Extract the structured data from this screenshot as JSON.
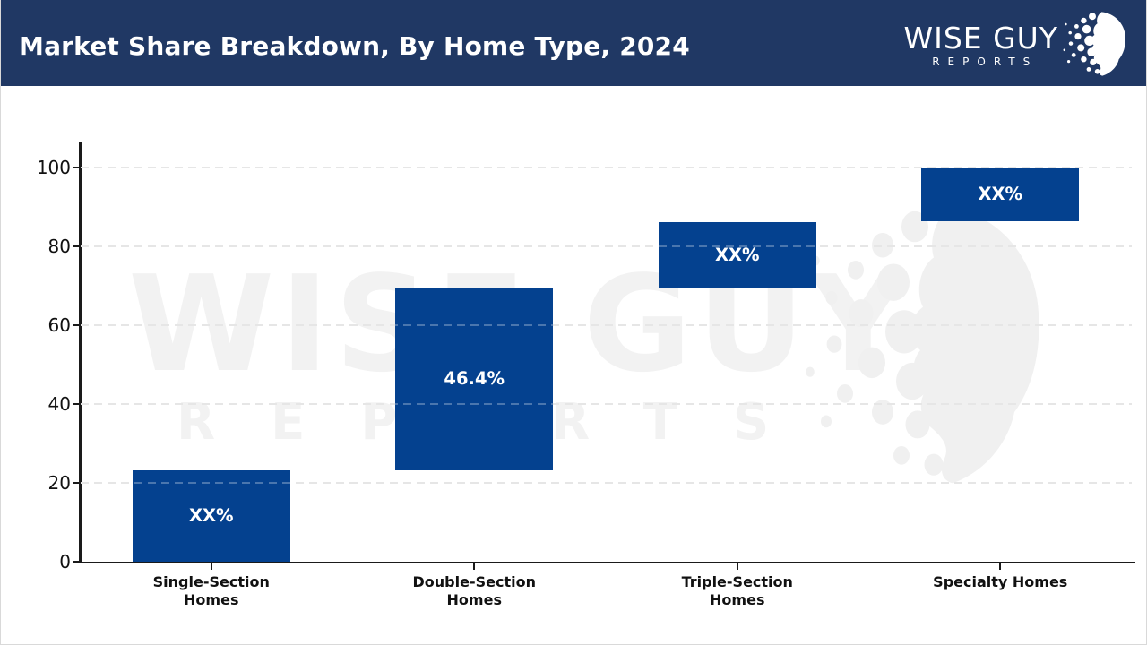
{
  "header": {
    "title": "Market Share Breakdown, By Home Type, 2024",
    "logo": {
      "line1": "WISE GUY",
      "line2": "REPORTS"
    }
  },
  "watermark": {
    "line1": "WISE GUY",
    "line2": "REPORTS"
  },
  "chart_data": {
    "type": "bar",
    "subtype": "waterfall-floating-bars",
    "title": "Market Share Breakdown, By Home Type, 2024",
    "categories": [
      "Single-Section Homes",
      "Double-Section Homes",
      "Triple-Section Homes",
      "Specialty Homes"
    ],
    "category_lines": [
      [
        "Single-Section",
        "Homes"
      ],
      [
        "Double-Section",
        "Homes"
      ],
      [
        "Triple-Section",
        "Homes"
      ],
      [
        "Specialty Homes"
      ]
    ],
    "segments": [
      {
        "category": "Single-Section Homes",
        "start": 0,
        "end": 23.2,
        "label": "XX%"
      },
      {
        "category": "Double-Section Homes",
        "start": 23.2,
        "end": 69.6,
        "label": "46.4%"
      },
      {
        "category": "Triple-Section Homes",
        "start": 69.6,
        "end": 86.2,
        "label": "XX%"
      },
      {
        "category": "Specialty Homes",
        "start": 86.4,
        "end": 100,
        "label": "XX%"
      }
    ],
    "xlabel": "",
    "ylabel": "",
    "y_ticks": [
      0,
      20,
      40,
      60,
      80,
      100
    ],
    "ylim": [
      0,
      106
    ],
    "grid": {
      "horizontal": true,
      "style": "dashed"
    },
    "legend": "none",
    "bar_color": "#04418f",
    "bar_label_color": "#ffffff"
  },
  "colors": {
    "header_bg": "#203864",
    "bar": "#04418f",
    "watermark": "#f2f2f2",
    "grid": "#dcdcdc",
    "axis": "#1a1a1a",
    "frame_border": "#d9d9d9"
  }
}
